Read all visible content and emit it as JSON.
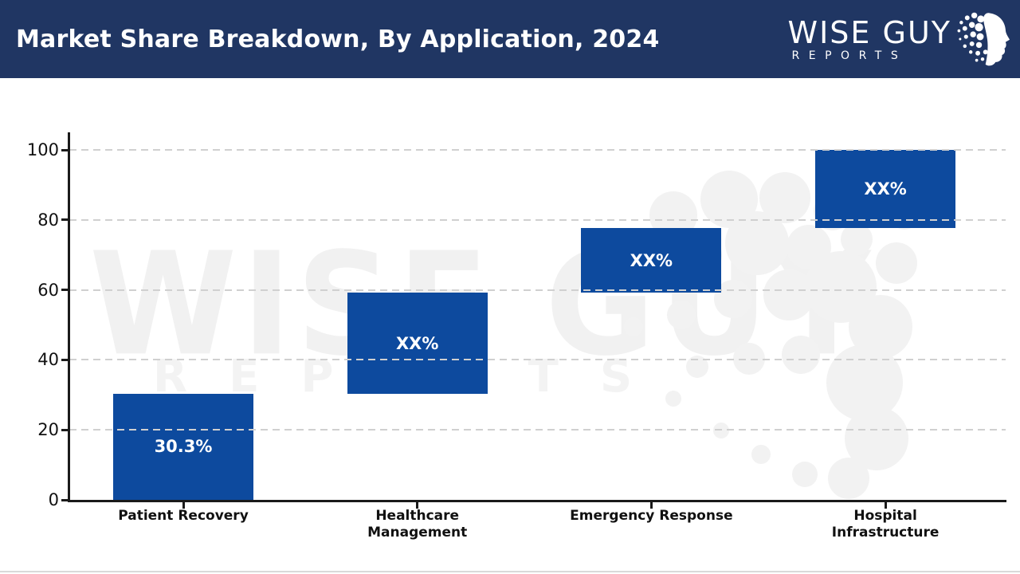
{
  "header": {
    "title": "Market Share Breakdown, By Application, 2024",
    "logo": {
      "line1": "WISE GUY",
      "line2": "REPORTS",
      "head_icon": "dotted-head-profile"
    }
  },
  "watermark": {
    "line1": "WISE GUY",
    "line2": "REPORTS",
    "head_icon": "dotted-head-profile"
  },
  "colors": {
    "header_bg": "#203663",
    "bar": "#0d4a9e",
    "gridline": "#d0d0d0",
    "axis": "#1a1a1a",
    "value_label_text": "#ffffff",
    "watermark": "#f1f1f1"
  },
  "chart_data": {
    "type": "bar",
    "subtype": "waterfall-segments",
    "title": "Market Share Breakdown, By Application, 2024",
    "categories": [
      "Patient Recovery",
      "Healthcare Management",
      "Emergency Response",
      "Hospital Infrastructure"
    ],
    "category_tick_lines": [
      [
        "Patient Recovery"
      ],
      [
        "Healthcare",
        "Management"
      ],
      [
        "Emergency Response"
      ],
      [
        "Hospital",
        "Infrastructure"
      ]
    ],
    "series": [
      {
        "name": "Market share (%)",
        "segments": [
          {
            "category": "Patient Recovery",
            "start": 0,
            "end": 30.3,
            "label": "30.3%"
          },
          {
            "category": "Healthcare Management",
            "start": 30.3,
            "end": 59.2,
            "label": "XX%"
          },
          {
            "category": "Emergency Response",
            "start": 59.2,
            "end": 77.6,
            "label": "XX%"
          },
          {
            "category": "Hospital Infrastructure",
            "start": 77.6,
            "end": 100,
            "label": "XX%"
          }
        ]
      }
    ],
    "ylim": [
      0,
      105.7
    ],
    "yticks": [
      0,
      20,
      40,
      60,
      80,
      100
    ],
    "xlabel": "",
    "ylabel": "",
    "grid": true,
    "grid_style": "dashed",
    "legend": null,
    "bar_color": "#0d4a9e"
  }
}
